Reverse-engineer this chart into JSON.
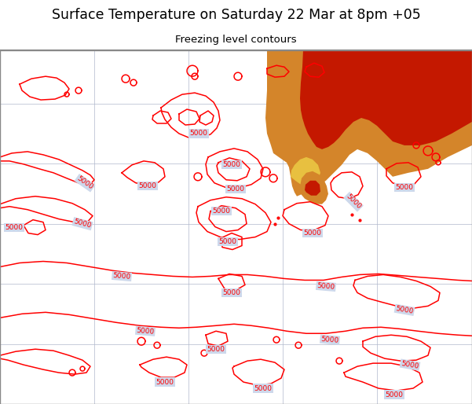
{
  "title": "Surface Temperature on Saturday 22 Mar at 8pm +05",
  "subtitle": "Freezing level contours",
  "title_fontsize": 12.5,
  "subtitle_fontsize": 9.5,
  "background_color": "#ffffff",
  "map_bg": "#cdd8eb",
  "grid_color": "#b0b8cc",
  "contour_color": "#ff0000",
  "title_color": "#000000",
  "label_bg": "#cdd8eb",
  "india_orange": "#d4852a",
  "india_red": "#c41800",
  "india_yellow": "#e8c040",
  "sri_orange": "#c87820",
  "border_color": "#888888"
}
